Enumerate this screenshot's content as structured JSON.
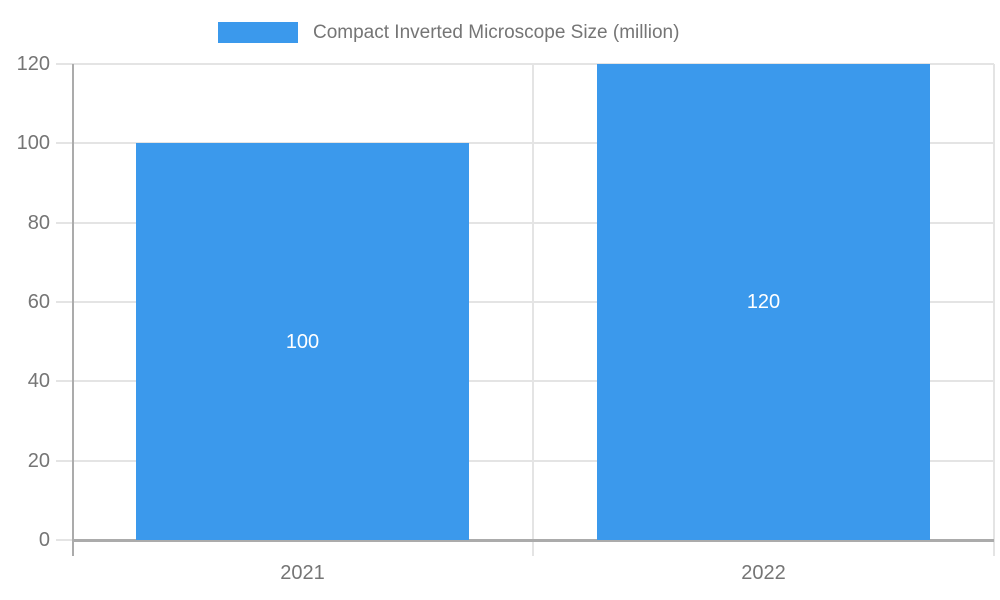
{
  "chart_data": {
    "type": "bar",
    "title": "Compact Inverted Microscope Size (million)",
    "categories": [
      "2021",
      "2022"
    ],
    "series": [
      {
        "name": "Compact Inverted Microscope Size (million)",
        "values": [
          100,
          120
        ]
      }
    ],
    "data_labels": [
      "100",
      "120"
    ],
    "xlabel": "",
    "ylabel": "",
    "ylim": [
      0,
      120
    ],
    "yticks": [
      0,
      20,
      40,
      60,
      80,
      100,
      120
    ],
    "grid": true,
    "legend_position": "top",
    "colors": {
      "bar": "#3B99EC",
      "bar_label_text": "#FFFFFF",
      "axis_line": "#ABABAB",
      "gridline": "#E4E4E4",
      "tick_text": "#757575",
      "legend_text": "#757575",
      "background": "#FFFFFF"
    }
  }
}
